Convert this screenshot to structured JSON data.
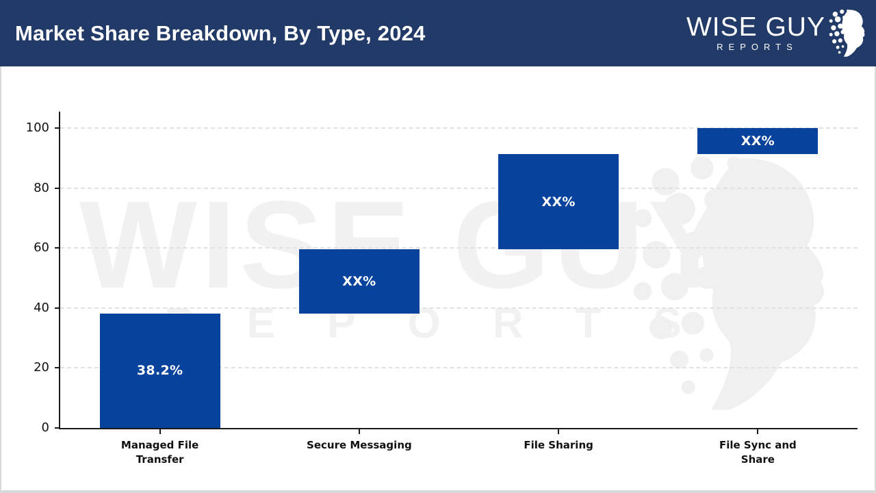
{
  "header": {
    "title": "Market Share Breakdown, By Type, 2024",
    "logo": {
      "primary": "WISE GUY",
      "secondary": "REPORTS"
    }
  },
  "watermark": {
    "primary": "WISE GUY",
    "secondary": "REPORTS"
  },
  "chart_data": {
    "type": "bar",
    "subtype": "waterfall-floating-bars",
    "title": "Market Share Breakdown, By Type, 2024",
    "xlabel": "",
    "ylabel": "",
    "ylim": [
      0,
      105
    ],
    "yticks": [
      0,
      20,
      40,
      60,
      80,
      100
    ],
    "grid": "horizontal-dashed",
    "legend": "none",
    "categories": [
      "Managed File Transfer",
      "Secure Messaging",
      "File Sharing",
      "File Sync and Share"
    ],
    "category_label_lines": [
      [
        "Managed File",
        "Transfer"
      ],
      [
        "Secure Messaging"
      ],
      [
        "File Sharing"
      ],
      [
        "File Sync and",
        "Share"
      ]
    ],
    "segments": [
      {
        "category": "Managed File Transfer",
        "start": 0,
        "end": 38.2,
        "label": "38.2%"
      },
      {
        "category": "Secure Messaging",
        "start": 38.2,
        "end": 59.5,
        "label": "XX%"
      },
      {
        "category": "File Sharing",
        "start": 59.5,
        "end": 91.3,
        "label": "XX%"
      },
      {
        "category": "File Sync and Share",
        "start": 91.3,
        "end": 100,
        "label": "XX%"
      }
    ],
    "colors": {
      "bar": "#07429c",
      "bar_label": "#ffffff",
      "grid": "#e1e1e1",
      "axis": "#1a1a1a",
      "tick_label": "#111111",
      "header_bg": "#213a67",
      "watermark": "#f1f1f1"
    }
  }
}
